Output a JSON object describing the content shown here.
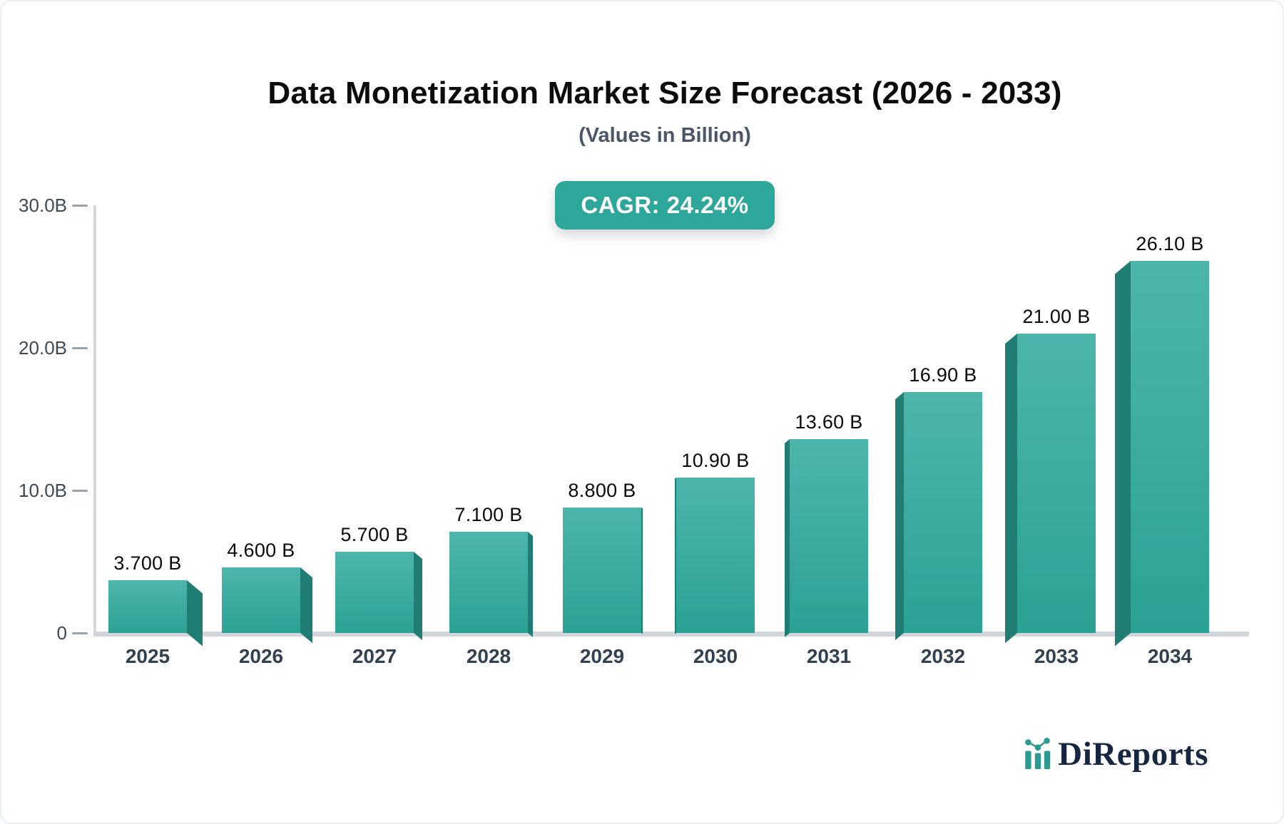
{
  "title": "Data Monetization Market Size Forecast (2026 - 2033)",
  "subtitle": "(Values in Billion)",
  "badge": {
    "label": "CAGR: 24.24%"
  },
  "logo": {
    "text": "DiReports",
    "icon": "mini-bar-chart-icon"
  },
  "colors": {
    "accent_teal": "#2ca79a",
    "bar_front_top": "#4db5ab",
    "bar_front_bottom": "#2aa294",
    "bar_side": "#1f7d73",
    "axis_gray": "#d2d5da",
    "logo_navy": "#182741",
    "logo_teal": "#2b9a91"
  },
  "chart_data": {
    "type": "bar",
    "categories": [
      "2025",
      "2026",
      "2027",
      "2028",
      "2029",
      "2030",
      "2031",
      "2032",
      "2033",
      "2034"
    ],
    "values": [
      3.7,
      4.6,
      5.7,
      7.1,
      8.8,
      10.9,
      13.6,
      16.9,
      21.0,
      26.1
    ],
    "value_labels": [
      "3.700 B",
      "4.600 B",
      "5.700 B",
      "7.100 B",
      "8.800 B",
      "10.90 B",
      "13.60 B",
      "16.90 B",
      "21.00 B",
      "26.10 B"
    ],
    "yticks": [
      {
        "label": "0",
        "value": 0
      },
      {
        "label": "10.0B",
        "value": 10
      },
      {
        "label": "20.0B",
        "value": 20
      },
      {
        "label": "30.0B",
        "value": 30
      }
    ],
    "ylim": [
      0,
      30
    ],
    "xlabel": "",
    "ylabel": "",
    "grid": false,
    "legend": false,
    "title": "Data Monetization Market Size Forecast (2026 - 2033)",
    "subtitle": "(Values in Billion)",
    "annotation": "CAGR: 24.24%"
  }
}
